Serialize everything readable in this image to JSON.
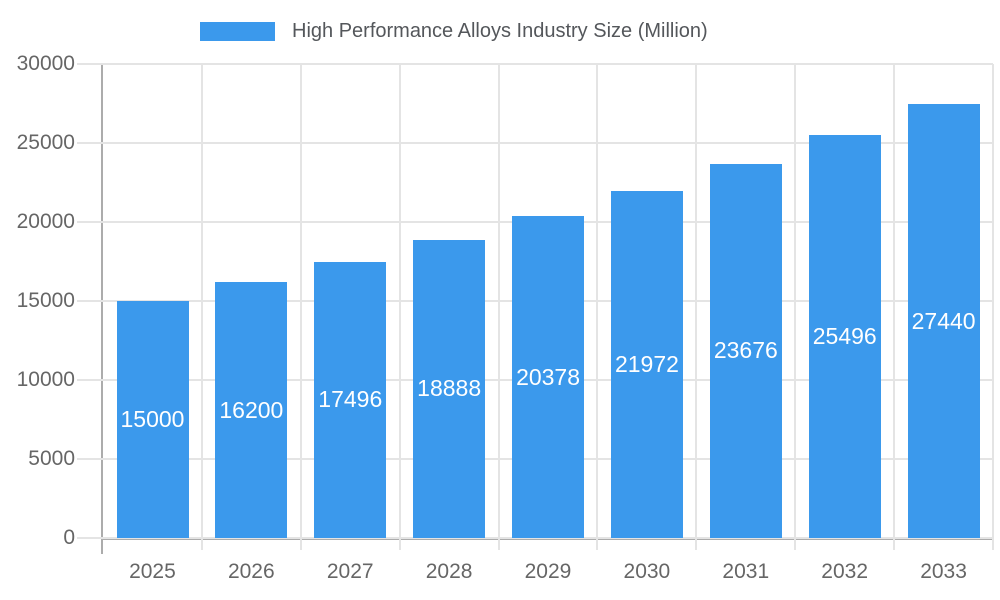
{
  "chart_data": {
    "type": "bar",
    "title": "High Performance Alloys Industry Size (Million)",
    "series_name": "High Performance Alloys Industry Size (Million)",
    "categories": [
      "2025",
      "2026",
      "2027",
      "2028",
      "2029",
      "2030",
      "2031",
      "2032",
      "2033"
    ],
    "values": [
      15000,
      16200,
      17496,
      18888,
      20378,
      21972,
      23676,
      25496,
      27440
    ],
    "value_labels": [
      "15000",
      "16200",
      "17496",
      "18888",
      "20378",
      "21972",
      "23676",
      "25496",
      "27440"
    ],
    "xlabel": "",
    "ylabel": "",
    "ylim": [
      0,
      30000
    ],
    "yticks": [
      0,
      5000,
      10000,
      15000,
      20000,
      25000,
      30000
    ],
    "ytick_labels": [
      "0",
      "5000",
      "10000",
      "15000",
      "20000",
      "25000",
      "30000"
    ],
    "grid": true,
    "legend_position": "top",
    "colors": {
      "bar": "#3B99EC",
      "value_label": "#FFFFFF",
      "grid": "#E4E4E4",
      "axis": "#ACACAC",
      "tick_label": "#666666",
      "legend_text": "#54575B",
      "background": "#FFFFFF"
    }
  }
}
